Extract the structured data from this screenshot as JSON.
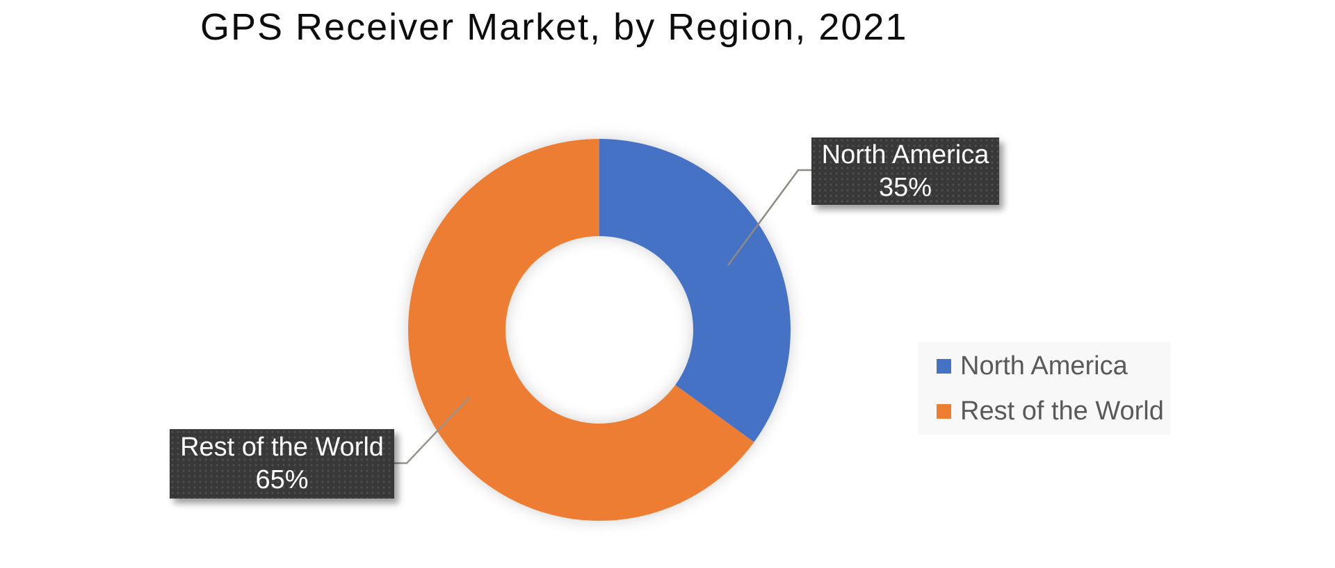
{
  "title": "GPS Receiver Market, by Region, 2021",
  "chart_data": {
    "type": "pie",
    "subtype": "donut",
    "title": "GPS Receiver Market, by Region, 2021",
    "categories": [
      "North America",
      "Rest of the World"
    ],
    "values": [
      35,
      65
    ],
    "unit": "%",
    "colors": [
      "#4472C4",
      "#ED7D31"
    ],
    "start_angle_deg": 0,
    "direction": "clockwise",
    "legend_position": "right",
    "data_labels": [
      {
        "label": "North America",
        "value_text": "35%"
      },
      {
        "label": "Rest of the World",
        "value_text": "65%"
      }
    ]
  },
  "callouts": [
    {
      "label": "North America",
      "value": "35%"
    },
    {
      "label": "Rest of the World",
      "value": "65%"
    }
  ],
  "legend": {
    "items": [
      {
        "label": "North America",
        "color": "#4472C4"
      },
      {
        "label": "Rest of the World",
        "color": "#ED7D31"
      }
    ]
  }
}
